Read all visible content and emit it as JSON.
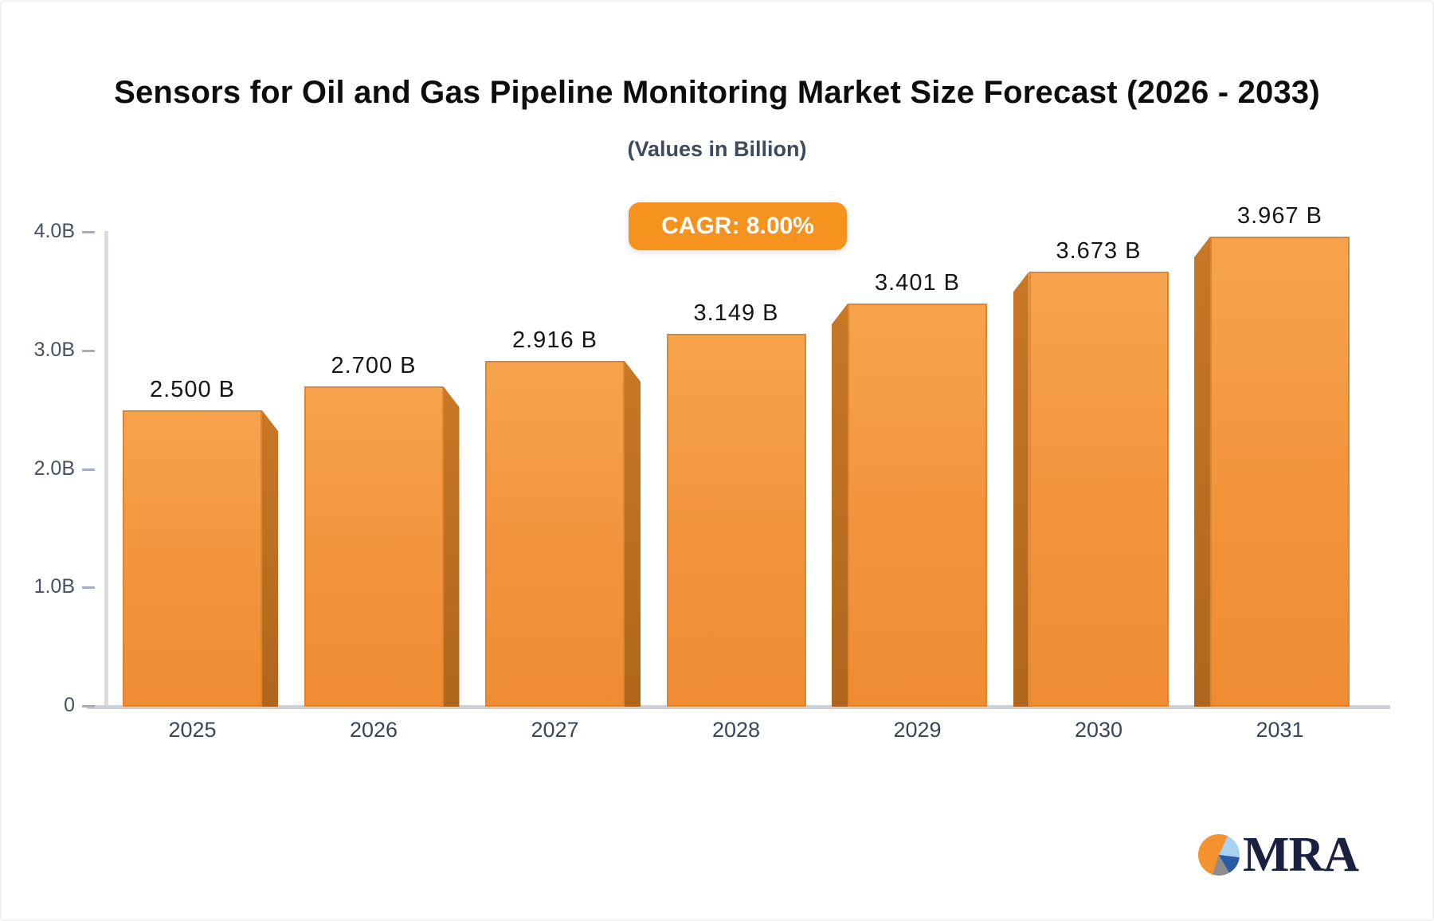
{
  "title": "Sensors for Oil and Gas Pipeline Monitoring Market Size Forecast (2026 - 2033)",
  "subtitle": "(Values in Billion)",
  "cagr_badge": {
    "label": "CAGR: 8.00%"
  },
  "chart_data": {
    "type": "bar",
    "title": "Sensors for Oil and Gas Pipeline Monitoring Market Size Forecast (2026 - 2033)",
    "subtitle": "(Values in Billion)",
    "unit": "Billion",
    "cagr": "8.00%",
    "categories": [
      "2025",
      "2026",
      "2027",
      "2028",
      "2029",
      "2030",
      "2031"
    ],
    "values": [
      2.5,
      2.7,
      2.916,
      3.149,
      3.401,
      3.673,
      3.967
    ],
    "value_labels": [
      "2.500 B",
      "2.700 B",
      "2.916 B",
      "3.149 B",
      "3.401 B",
      "3.673 B",
      "3.967 B"
    ],
    "y_ticks": [
      {
        "label": "4.0B",
        "value": 4.0
      },
      {
        "label": "3.0B",
        "value": 3.0
      },
      {
        "label": "2.0B",
        "value": 2.0
      },
      {
        "label": "1.0B",
        "value": 1.0
      },
      {
        "label": "0",
        "value": 0.0
      }
    ],
    "ylim": [
      0,
      4.0
    ],
    "xlabel": "",
    "ylabel": "",
    "grid": false,
    "legend": false,
    "bar_color": "#f2943c",
    "bar_side_color": "#bc6f20",
    "style": "3d-columns, side shading faces away from center bar"
  },
  "logo": {
    "text": "MRA",
    "icon": "pie-chart-icon"
  },
  "colors": {
    "accent_orange": "#f6921e",
    "title_text": "#0c0d0f",
    "subtitle_text": "#3e4a5c",
    "axis_line": "#d8dbe0",
    "tick_text": "#47515f",
    "logo_navy": "#1a2140"
  }
}
